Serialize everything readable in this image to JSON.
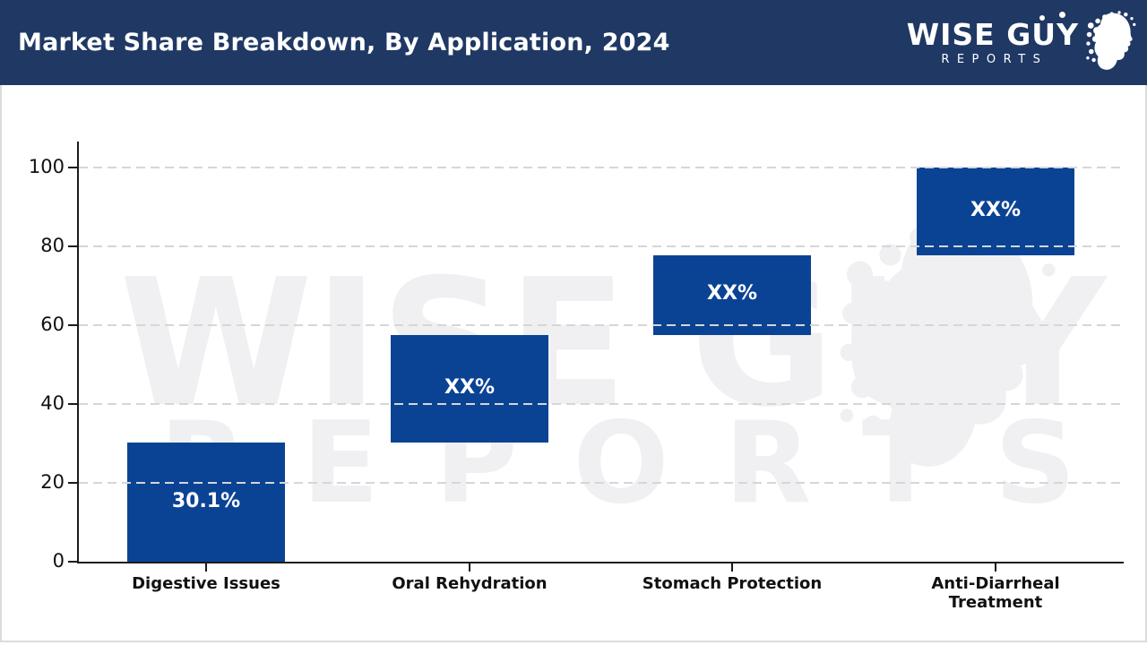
{
  "header": {
    "title": "Market Share Breakdown, By Application, 2024",
    "bg_color": "#1f3864",
    "logo": {
      "line1": "WISE GUY",
      "line2": "REPORTS"
    }
  },
  "watermark": {
    "line1": "WISE GUY",
    "line2": "REPORTS",
    "color": "#f0f0f3"
  },
  "chart_data": {
    "type": "bar",
    "subtype": "waterfall",
    "title": "Market Share Breakdown, By Application, 2024",
    "categories": [
      "Digestive Issues",
      "Oral Rehydration",
      "Stomach Protection",
      "Anti-Diarrheal\nTreatment"
    ],
    "series": [
      {
        "name": "Market Share",
        "segment_values": [
          30.1,
          27.4,
          20.2,
          22.3
        ],
        "cumulative_starts": [
          0,
          30.1,
          57.5,
          77.7
        ],
        "cumulative_ends": [
          30.1,
          57.5,
          77.7,
          100
        ]
      }
    ],
    "bar_labels": [
      "30.1%",
      "XX%",
      "XX%",
      "XX%"
    ],
    "xlabel": "",
    "ylabel": "",
    "yticks": [
      0,
      20,
      40,
      60,
      80,
      100
    ],
    "ylim": [
      0,
      106
    ],
    "grid": "dashed-horizontal",
    "legend": "none",
    "bar_color": "#0b4394",
    "bar_label_color": "#ffffff",
    "axis_color": "#1a1a1a",
    "gridline_color": "#d6d6d6"
  },
  "frame_color": "#dcdcdc"
}
